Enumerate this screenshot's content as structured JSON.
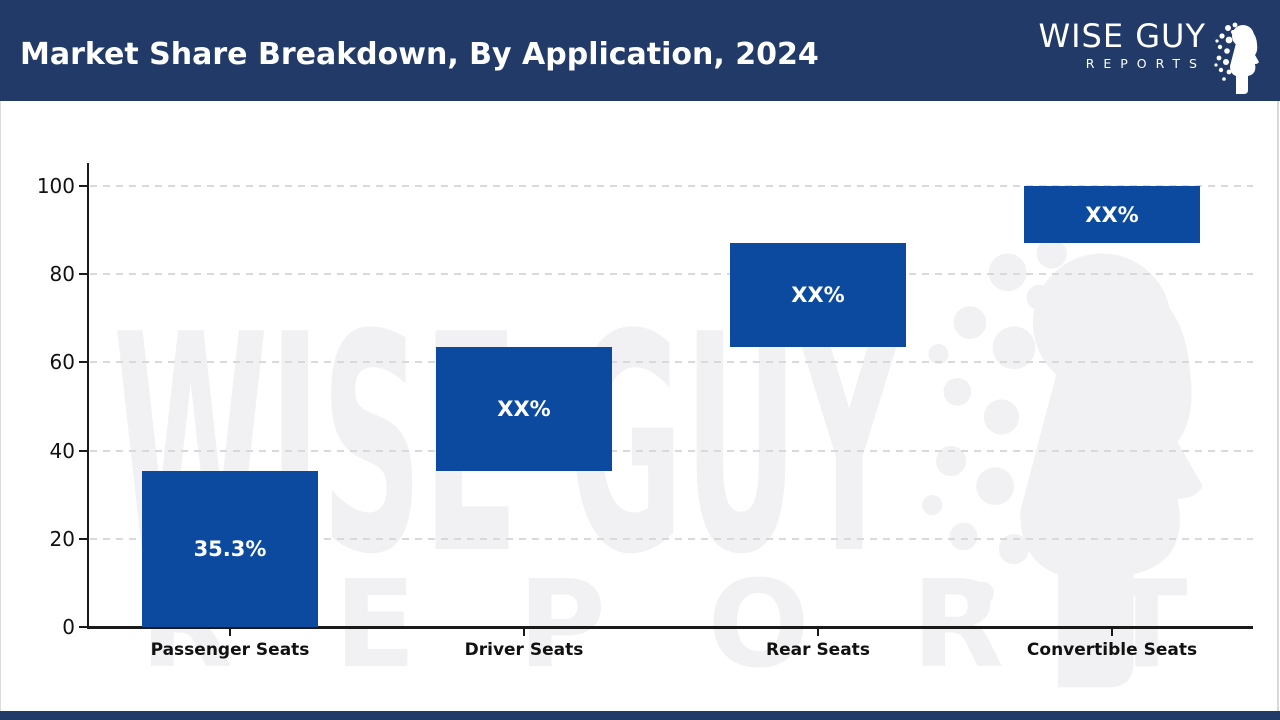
{
  "header": {
    "title": "Market Share Breakdown, By Application, 2024",
    "logo": {
      "line1": "WISE GUY",
      "line2": "REPORTS"
    }
  },
  "watermark": {
    "line1": "WISE GUY",
    "line2": "R E P O R T S"
  },
  "colors": {
    "header_bg": "#213a67",
    "footer_bg": "#213a67",
    "bar": "#0b4a9f",
    "bar_label_text": "#ffffff",
    "gridline": "#d9d9d9",
    "axis": "#1a1a1a",
    "watermark": "#f1f1f4"
  },
  "chart_data": {
    "type": "bar",
    "subtype": "waterfall-floating-bars",
    "title": "Market Share Breakdown, By Application, 2024",
    "categories": [
      "Passenger Seats",
      "Driver Seats",
      "Rear Seats",
      "Convertible Seats"
    ],
    "bars": [
      {
        "category": "Passenger Seats",
        "start": 0,
        "end": 35.3,
        "label": "35.3%"
      },
      {
        "category": "Driver Seats",
        "start": 35.3,
        "end": 63.5,
        "label": "XX%"
      },
      {
        "category": "Rear Seats",
        "start": 63.5,
        "end": 87,
        "label": "XX%"
      },
      {
        "category": "Convertible Seats",
        "start": 87,
        "end": 100,
        "label": "XX%"
      }
    ],
    "yticks": [
      0,
      20,
      40,
      60,
      80,
      100
    ],
    "ylim": [
      0,
      105
    ],
    "xlabel": "",
    "ylabel": "",
    "grid": "dashed-horizontal",
    "legend": null
  }
}
